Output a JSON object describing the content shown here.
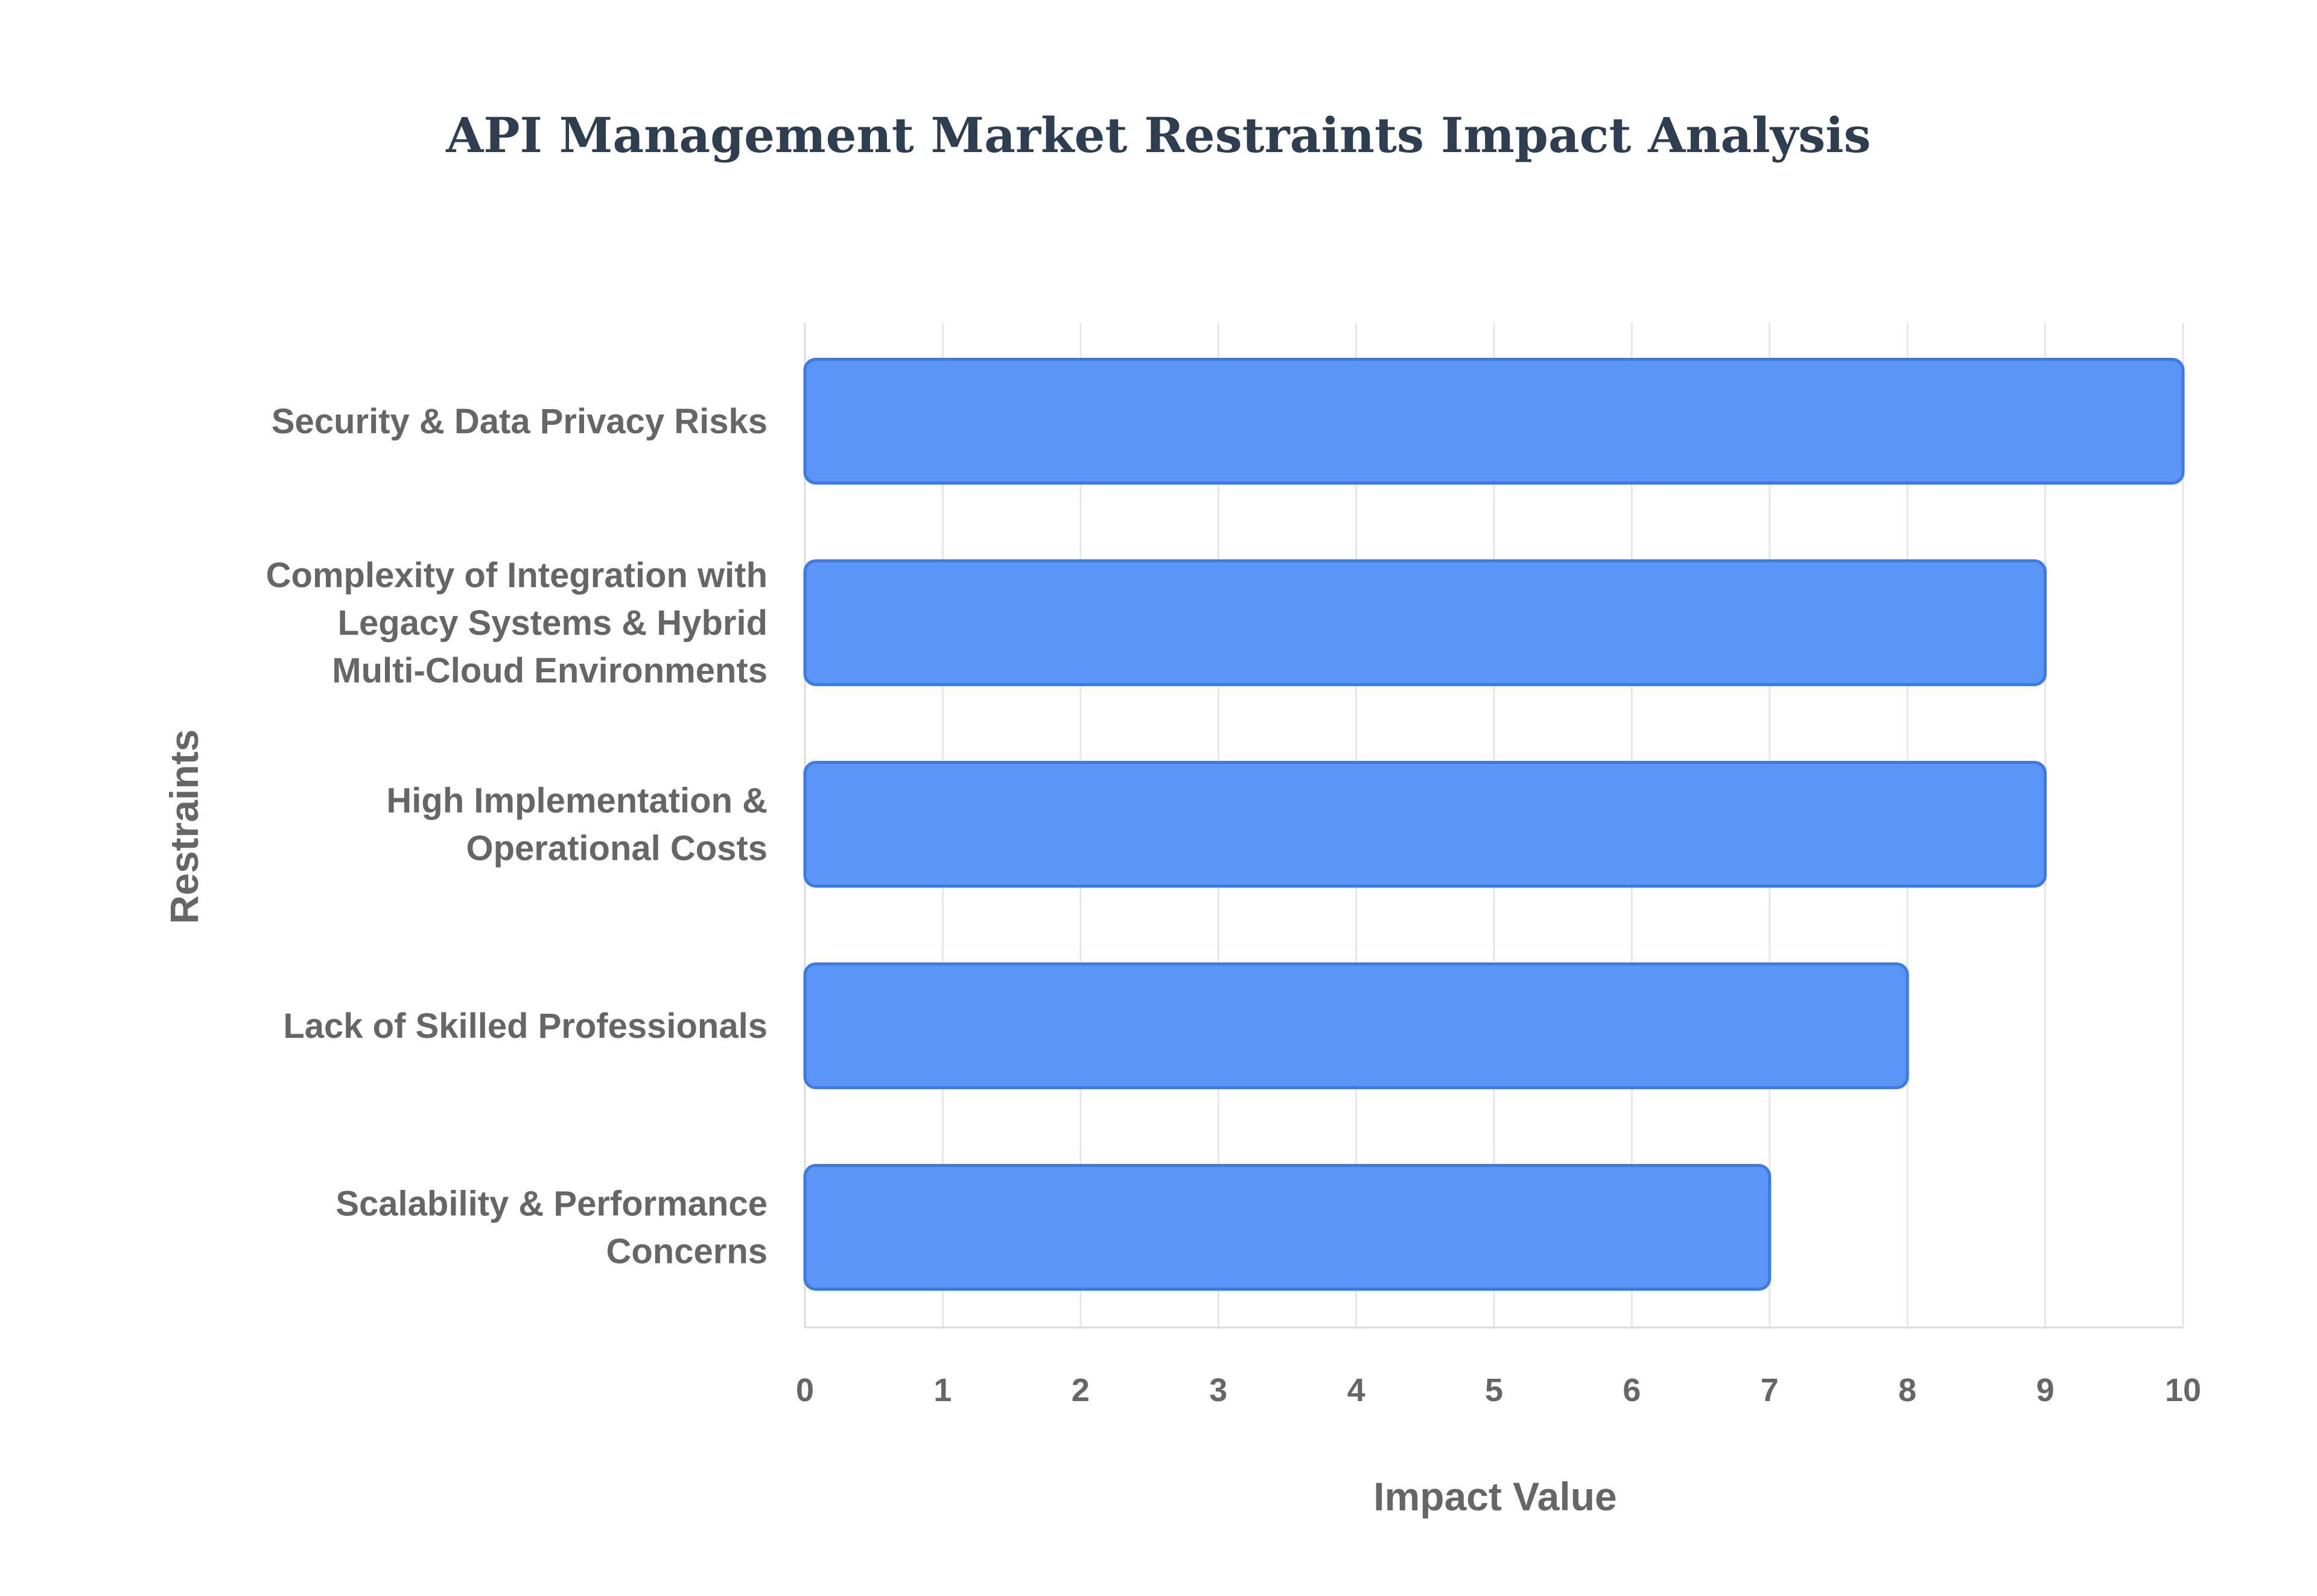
{
  "chart_data": {
    "type": "bar",
    "orientation": "horizontal",
    "title": "API Management Market Restraints Impact Analysis",
    "xlabel": "Impact Value",
    "ylabel": "Restraints",
    "categories": [
      [
        "Security & Data Privacy Risks"
      ],
      [
        "Complexity of Integration with",
        "Legacy Systems & Hybrid",
        "Multi-Cloud Environments"
      ],
      [
        "High Implementation &",
        "Operational Costs"
      ],
      [
        "Lack of Skilled Professionals"
      ],
      [
        "Scalability & Performance",
        "Concerns"
      ]
    ],
    "values": [
      10,
      9,
      9,
      8,
      7
    ],
    "xlim": [
      0,
      10
    ],
    "xticks": [
      "0",
      "1",
      "2",
      "3",
      "4",
      "5",
      "6",
      "7",
      "8",
      "9",
      "10"
    ],
    "grid": true,
    "legend": "none",
    "colors": {
      "bar_fill": "#5b95f5",
      "bar_stroke": "#3b7ae8",
      "title": "#2c3e50",
      "text": "#666666",
      "grid": "#e6e6e6"
    }
  }
}
